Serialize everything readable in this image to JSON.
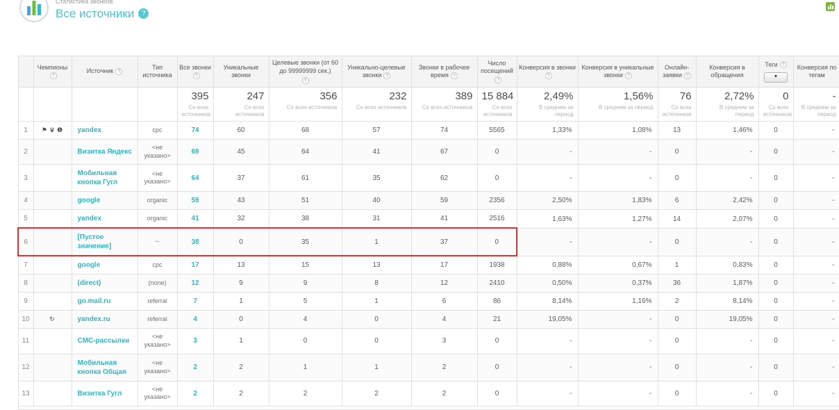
{
  "ui": {
    "help_glyph": "?",
    "caret_glyph": "▼"
  },
  "colors": {
    "accent": "#2fb6c5",
    "highlight": "#e03131",
    "header_bg": "#f4f4f4"
  },
  "page": {
    "subtitle": "Статистика звонков",
    "title": "Все источники"
  },
  "table": {
    "headers": [
      {
        "label": ""
      },
      {
        "label": "Чемпионы"
      },
      {
        "label": "Источник"
      },
      {
        "label": "Тип источника"
      },
      {
        "label": "Все звонки"
      },
      {
        "label": "Уникальные звонки"
      },
      {
        "label": "Целевые звонки (от 60 до 99999999 сек.)"
      },
      {
        "label": "Уникально-целевые звонки"
      },
      {
        "label": "Звонки в рабочее время"
      },
      {
        "label": "Число посещений"
      },
      {
        "label": "Конверсия в звонки"
      },
      {
        "label": "Конверсия в уникальные звонки"
      },
      {
        "label": "Онлайн-заявки"
      },
      {
        "label": "Конверсия в обращения"
      },
      {
        "label": "Теги"
      },
      {
        "label": "Конверсия по тегам"
      }
    ],
    "summary": [
      {
        "value": "395",
        "caption": "Со всех источников"
      },
      {
        "value": "247",
        "caption": "Со всех источников"
      },
      {
        "value": "356",
        "caption": "Со всех источников"
      },
      {
        "value": "232",
        "caption": "Со всех источников"
      },
      {
        "value": "389",
        "caption": "Со всех источников"
      },
      {
        "value": "15 884",
        "caption": "Со всех источников"
      },
      {
        "value": "2,49%",
        "caption": "В среднем за период"
      },
      {
        "value": "1,56%",
        "caption": "В среднем за период"
      },
      {
        "value": "76",
        "caption": "Со всех источников"
      },
      {
        "value": "2,72%",
        "caption": "В среднем за период"
      },
      {
        "value": "0",
        "caption": "Со всех источников"
      },
      {
        "value": "-",
        "caption": "В среднем за период"
      }
    ],
    "rows": [
      {
        "num": "1",
        "champions": [
          "flag",
          "crown",
          "medal"
        ],
        "source": "yandex",
        "type": "cpc",
        "all_calls": "74",
        "unique_calls": "60",
        "target_calls": "68",
        "unique_target_calls": "57",
        "work_time_calls": "74",
        "visits": "5565",
        "conv_calls": "1,33%",
        "conv_unique_calls": "1,08%",
        "online_leads": "13",
        "conv_contacts": "1,46%",
        "tags": "0",
        "conv_tags": "-",
        "highlighted": false
      },
      {
        "num": "2",
        "champions": [],
        "source": "Визитка Яндекс",
        "type": "<не указано>",
        "all_calls": "69",
        "unique_calls": "45",
        "target_calls": "64",
        "unique_target_calls": "41",
        "work_time_calls": "67",
        "visits": "0",
        "conv_calls": "-",
        "conv_unique_calls": "-",
        "online_leads": "0",
        "conv_contacts": "-",
        "tags": "0",
        "conv_tags": "-",
        "highlighted": false
      },
      {
        "num": "3",
        "champions": [],
        "source": "Мобильная кнопка Гугл",
        "type": "<не указано>",
        "all_calls": "64",
        "unique_calls": "37",
        "target_calls": "61",
        "unique_target_calls": "35",
        "work_time_calls": "62",
        "visits": "0",
        "conv_calls": "-",
        "conv_unique_calls": "-",
        "online_leads": "0",
        "conv_contacts": "-",
        "tags": "0",
        "conv_tags": "-",
        "highlighted": false
      },
      {
        "num": "4",
        "champions": [],
        "source": "google",
        "type": "organic",
        "all_calls": "59",
        "unique_calls": "43",
        "target_calls": "51",
        "unique_target_calls": "40",
        "work_time_calls": "59",
        "visits": "2356",
        "conv_calls": "2,50%",
        "conv_unique_calls": "1,83%",
        "online_leads": "6",
        "conv_contacts": "2,42%",
        "tags": "0",
        "conv_tags": "-",
        "highlighted": false
      },
      {
        "num": "5",
        "champions": [],
        "source": "yandex",
        "type": "organic",
        "all_calls": "41",
        "unique_calls": "32",
        "target_calls": "38",
        "unique_target_calls": "31",
        "work_time_calls": "41",
        "visits": "2516",
        "conv_calls": "1,63%",
        "conv_unique_calls": "1,27%",
        "online_leads": "14",
        "conv_contacts": "2,07%",
        "tags": "0",
        "conv_tags": "-",
        "highlighted": false
      },
      {
        "num": "6",
        "champions": [],
        "source": "[Пустое значение]",
        "type": "--",
        "all_calls": "38",
        "unique_calls": "0",
        "target_calls": "35",
        "unique_target_calls": "1",
        "work_time_calls": "37",
        "visits": "0",
        "conv_calls": "-",
        "conv_unique_calls": "-",
        "online_leads": "0",
        "conv_contacts": "-",
        "tags": "0",
        "conv_tags": "-",
        "highlighted": true
      },
      {
        "num": "7",
        "champions": [],
        "source": "google",
        "type": "cpc",
        "all_calls": "17",
        "unique_calls": "13",
        "target_calls": "15",
        "unique_target_calls": "13",
        "work_time_calls": "17",
        "visits": "1938",
        "conv_calls": "0,88%",
        "conv_unique_calls": "0,67%",
        "online_leads": "1",
        "conv_contacts": "0,83%",
        "tags": "0",
        "conv_tags": "-",
        "highlighted": false
      },
      {
        "num": "8",
        "champions": [],
        "source": "(direct)",
        "type": "(none)",
        "all_calls": "12",
        "unique_calls": "9",
        "target_calls": "9",
        "unique_target_calls": "8",
        "work_time_calls": "12",
        "visits": "2410",
        "conv_calls": "0,50%",
        "conv_unique_calls": "0,37%",
        "online_leads": "36",
        "conv_contacts": "1,87%",
        "tags": "0",
        "conv_tags": "-",
        "highlighted": false
      },
      {
        "num": "9",
        "champions": [],
        "source": "go.mail.ru",
        "type": "referral",
        "all_calls": "7",
        "unique_calls": "1",
        "target_calls": "5",
        "unique_target_calls": "1",
        "work_time_calls": "6",
        "visits": "86",
        "conv_calls": "8,14%",
        "conv_unique_calls": "1,16%",
        "online_leads": "2",
        "conv_contacts": "8,14%",
        "tags": "0",
        "conv_tags": "-",
        "highlighted": false
      },
      {
        "num": "10",
        "champions": [
          "refresh"
        ],
        "source": "yandex.ru",
        "type": "referral",
        "all_calls": "4",
        "unique_calls": "0",
        "target_calls": "4",
        "unique_target_calls": "0",
        "work_time_calls": "4",
        "visits": "21",
        "conv_calls": "19,05%",
        "conv_unique_calls": "-",
        "online_leads": "0",
        "conv_contacts": "19,05%",
        "tags": "0",
        "conv_tags": "-",
        "highlighted": false
      },
      {
        "num": "11",
        "champions": [],
        "source": "СМС-рассылки",
        "type": "<не указано>",
        "all_calls": "3",
        "unique_calls": "1",
        "target_calls": "0",
        "unique_target_calls": "0",
        "work_time_calls": "3",
        "visits": "0",
        "conv_calls": "-",
        "conv_unique_calls": "-",
        "online_leads": "0",
        "conv_contacts": "-",
        "tags": "0",
        "conv_tags": "-",
        "highlighted": false
      },
      {
        "num": "12",
        "champions": [],
        "source": "Мобильная кнопка Общая",
        "type": "<не указано>",
        "all_calls": "2",
        "unique_calls": "2",
        "target_calls": "1",
        "unique_target_calls": "1",
        "work_time_calls": "2",
        "visits": "0",
        "conv_calls": "-",
        "conv_unique_calls": "-",
        "online_leads": "0",
        "conv_contacts": "-",
        "tags": "0",
        "conv_tags": "-",
        "highlighted": false
      },
      {
        "num": "13",
        "champions": [],
        "source": "Визитка Гугл",
        "type": "<не указано>",
        "all_calls": "2",
        "unique_calls": "2",
        "target_calls": "2",
        "unique_target_calls": "2",
        "work_time_calls": "2",
        "visits": "0",
        "conv_calls": "-",
        "conv_unique_calls": "-",
        "online_leads": "0",
        "conv_contacts": "-",
        "tags": "0",
        "conv_tags": "-",
        "highlighted": false
      }
    ]
  }
}
